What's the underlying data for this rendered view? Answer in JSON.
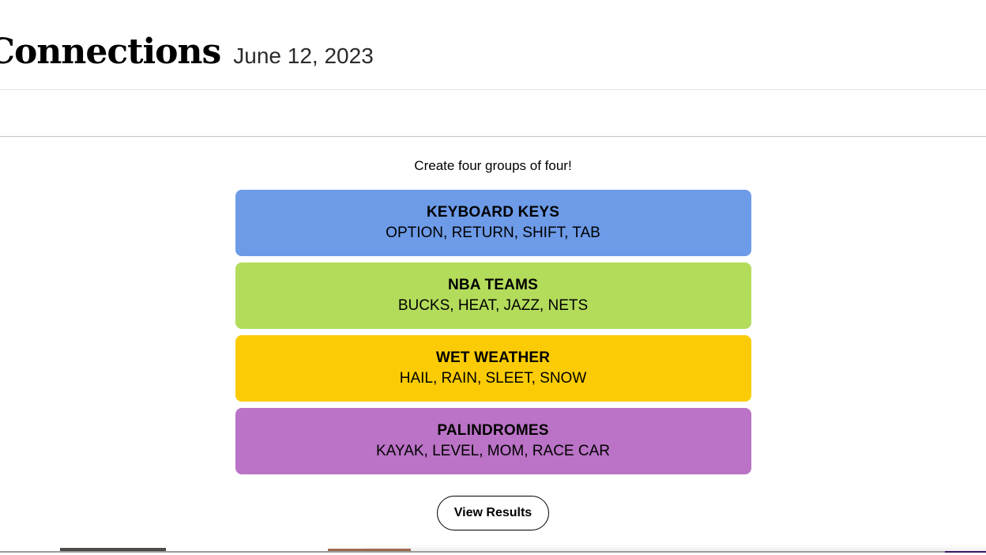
{
  "header": {
    "title": "Connections",
    "date": "June 12, 2023"
  },
  "board": {
    "instruction": "Create four groups of four!",
    "groups": [
      {
        "name": "KEYBOARD KEYS",
        "members": "OPTION, RETURN, SHIFT, TAB",
        "color": "#6D9BE8"
      },
      {
        "name": "NBA TEAMS",
        "members": "BUCKS, HEAT, JAZZ, NETS",
        "color": "#B3DC5B"
      },
      {
        "name": "WET WEATHER",
        "members": "HAIL, RAIN, SLEET, SNOW",
        "color": "#FBCC05"
      },
      {
        "name": "PALINDROMES",
        "members": "KAYAK, LEVEL, MOM, RACE CAR",
        "color": "#BA73C6"
      }
    ],
    "view_results_label": "View Results"
  },
  "colors": {
    "group_blue": "#6D9BE8",
    "group_green": "#B3DC5B",
    "group_yellow": "#FBCC05",
    "group_purple": "#BA73C6",
    "divider": "#e2e2e2",
    "bottom_accent": "#3a1466"
  }
}
